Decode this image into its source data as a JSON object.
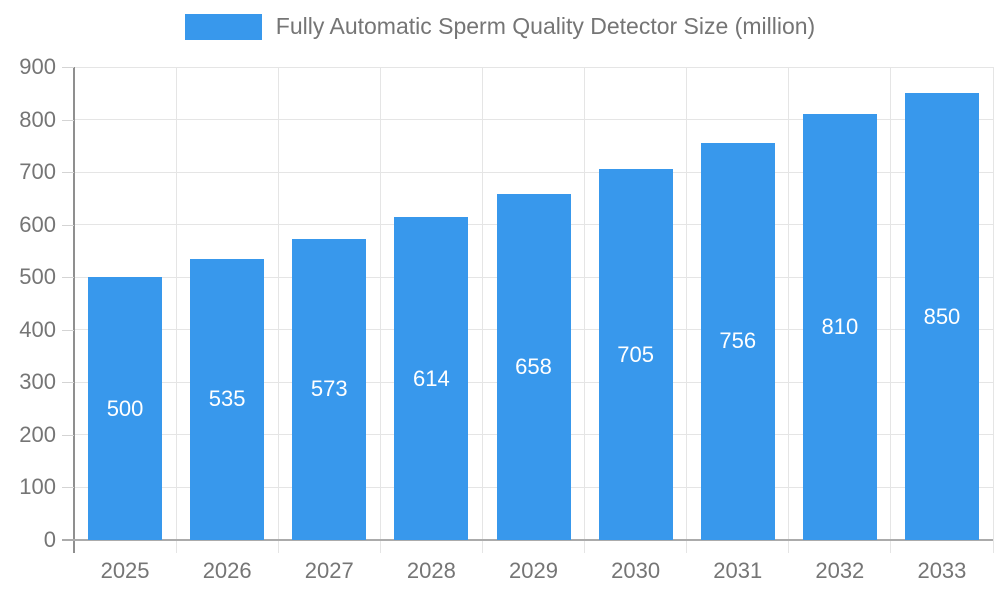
{
  "chart_data": {
    "type": "bar",
    "title": "Fully Automatic Sperm Quality Detector Size (million)",
    "categories": [
      "2025",
      "2026",
      "2027",
      "2028",
      "2029",
      "2030",
      "2031",
      "2032",
      "2033"
    ],
    "values": [
      500,
      535,
      573,
      614,
      658,
      705,
      756,
      810,
      850
    ],
    "xlabel": "",
    "ylabel": "",
    "ylim": [
      0,
      900
    ],
    "ytick_step": 100,
    "grid": true,
    "legend_position": "top",
    "colors": {
      "bar": "#3898ec",
      "value_label": "#ffffff",
      "axis_text": "#757575",
      "gridline": "#e5e5e5",
      "axis_line": "#8f8f8f",
      "baseline": "#ababab",
      "tick": "#d4d4d4"
    }
  }
}
